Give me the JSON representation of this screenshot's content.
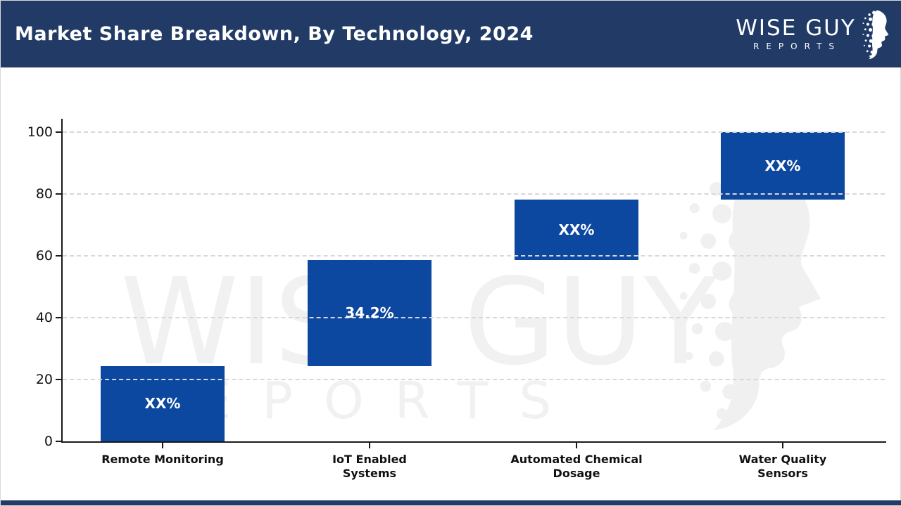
{
  "header": {
    "title": "Market Share Breakdown, By Technology, 2024",
    "logo_line1": "WISE GUY",
    "logo_line2": "REPORTS",
    "bg_color": "#213a66",
    "text_color": "#ffffff"
  },
  "watermark": {
    "line1": "WISE GUY",
    "line2": "REPORTS"
  },
  "chart_data": {
    "type": "bar",
    "subtype": "waterfall",
    "title": "Market Share Breakdown, By Technology, 2024",
    "xlabel": "",
    "ylabel": "",
    "ylim": [
      0,
      104
    ],
    "y_ticks": [
      0,
      20,
      40,
      60,
      80,
      100
    ],
    "grid": "horizontal-dashed",
    "legend": "none",
    "bar_color": "#0c47a0",
    "gridline_color": "#d8d8d8",
    "axis_color": "#1a1a1a",
    "categories": [
      "Remote Monitoring",
      "IoT Enabled Systems",
      "Automated Chemical Dosage",
      "Water Quality Sensors"
    ],
    "segments": [
      {
        "label": "Remote Monitoring",
        "axis_label_lines": [
          "Remote Monitoring"
        ],
        "start": 0,
        "end": 24.4,
        "value": 24.4,
        "value_label": "XX%"
      },
      {
        "label": "IoT Enabled Systems",
        "axis_label_lines": [
          "IoT Enabled",
          "Systems"
        ],
        "start": 24.4,
        "end": 58.6,
        "value": 34.2,
        "value_label": "34.2%"
      },
      {
        "label": "Automated Chemical Dosage",
        "axis_label_lines": [
          "Automated Chemical",
          "Dosage"
        ],
        "start": 58.6,
        "end": 78.2,
        "value": 19.6,
        "value_label": "XX%"
      },
      {
        "label": "Water Quality Sensors",
        "axis_label_lines": [
          "Water Quality",
          "Sensors"
        ],
        "start": 78.2,
        "end": 100,
        "value": 21.8,
        "value_label": "XX%"
      }
    ]
  }
}
